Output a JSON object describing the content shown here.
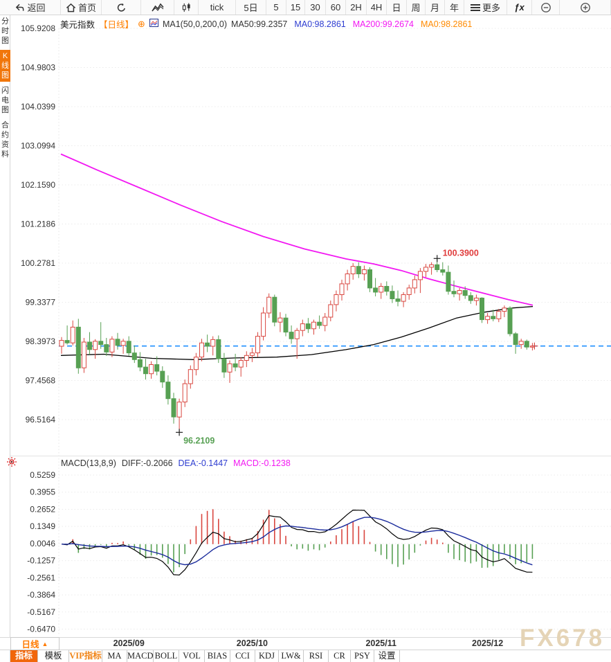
{
  "toolbar": {
    "items": [
      {
        "name": "back-button",
        "icon": "back-arrow",
        "label": "返回"
      },
      {
        "name": "home-button",
        "icon": "home",
        "label": "首页"
      },
      {
        "name": "refresh-button",
        "icon": "refresh",
        "label": ""
      },
      {
        "name": "line-chart-button",
        "icon": "line-chart",
        "label": ""
      },
      {
        "name": "candlestick-button",
        "icon": "candlestick",
        "label": ""
      },
      {
        "name": "tick-button",
        "icon": "",
        "label": "tick"
      },
      {
        "name": "5d-button",
        "icon": "",
        "label": "5日"
      },
      {
        "name": "5m-button",
        "icon": "",
        "label": "5"
      },
      {
        "name": "15m-button",
        "icon": "",
        "label": "15"
      },
      {
        "name": "30m-button",
        "icon": "",
        "label": "30"
      },
      {
        "name": "60m-button",
        "icon": "",
        "label": "60"
      },
      {
        "name": "2h-button",
        "icon": "",
        "label": "2H"
      },
      {
        "name": "4h-button",
        "icon": "",
        "label": "4H"
      },
      {
        "name": "day-button",
        "icon": "",
        "label": "日"
      },
      {
        "name": "week-button",
        "icon": "",
        "label": "周"
      },
      {
        "name": "month-button",
        "icon": "",
        "label": "月"
      },
      {
        "name": "year-button",
        "icon": "",
        "label": "年"
      },
      {
        "name": "more-button",
        "icon": "menu",
        "label": "更多"
      },
      {
        "name": "fx-button",
        "icon": "fx",
        "label": ""
      },
      {
        "name": "zoom-out-button",
        "icon": "zoom-out",
        "label": ""
      },
      {
        "name": "zoom-in-button",
        "icon": "zoom-in",
        "label": ""
      }
    ]
  },
  "sidebar": {
    "tabs": [
      {
        "name": "sidebar-tab-time-share",
        "label": "分时图",
        "active": false
      },
      {
        "name": "sidebar-tab-kline",
        "label": "K线图",
        "active": true
      },
      {
        "name": "sidebar-tab-lightning",
        "label": "闪电图",
        "active": false
      },
      {
        "name": "sidebar-tab-contract-info",
        "label": "合约资料",
        "active": false
      }
    ]
  },
  "chart_header": {
    "symbol": "美元指数",
    "period": "【日线】",
    "ma_config": "MA1(50,0,200,0)",
    "ma_values": [
      {
        "text": "MA50:99.2357",
        "color": "#333333"
      },
      {
        "text": "MA0:98.2861",
        "color": "#2d3cd0"
      },
      {
        "text": "MA200:99.2674",
        "color": "#f218f2"
      },
      {
        "text": "MA0:98.2861",
        "color": "#ff8a00"
      }
    ]
  },
  "macd_header": {
    "values": [
      {
        "text": "MACD(13,8,9)",
        "color": "#333333"
      },
      {
        "text": "DIFF:-0.2066",
        "color": "#333333"
      },
      {
        "text": "DEA:-0.1447",
        "color": "#2d3cd0"
      },
      {
        "text": "MACD:-0.1238",
        "color": "#f218f2"
      }
    ]
  },
  "chart_data": {
    "type": "candlestick",
    "title": "美元指数 日线 (US Dollar Index, daily)",
    "price_axis": [
      105.9208,
      104.9803,
      104.0399,
      103.0994,
      102.159,
      101.2186,
      100.2781,
      99.3377,
      98.3973,
      97.4568,
      96.5164
    ],
    "macd_axis": [
      0.5259,
      0.3955,
      0.2652,
      0.1349,
      0.0046,
      -0.1257,
      -0.2561,
      -0.3864,
      -0.5167,
      -0.647
    ],
    "months": [
      {
        "label": "2025/09",
        "index": 12
      },
      {
        "label": "2025/10",
        "index": 34
      },
      {
        "label": "2025/11",
        "index": 57
      },
      {
        "label": "2025/12",
        "index": 76
      }
    ],
    "last_price": 98.2861,
    "high_label": "100.3900",
    "low_label": "96.2109",
    "colors": {
      "up": "#d9463f",
      "down": "#57a053",
      "ma50": "#000000",
      "ma200": "#f218f2",
      "diff": "#000000",
      "dea": "#1a2b9c",
      "last_price_line": "#1e8fff",
      "grid": "#ebebeb",
      "high_label": "#e03c3c",
      "low_label": "#57a053"
    },
    "candles": [
      [
        98.28,
        98.5,
        98.1,
        98.42
      ],
      [
        98.42,
        98.78,
        98.32,
        98.36
      ],
      [
        98.36,
        98.9,
        98.3,
        98.74
      ],
      [
        98.74,
        98.94,
        97.62,
        97.76
      ],
      [
        97.76,
        98.48,
        97.64,
        98.38
      ],
      [
        98.38,
        98.62,
        98.08,
        98.2
      ],
      [
        98.2,
        98.45,
        97.98,
        98.4
      ],
      [
        98.4,
        98.86,
        98.22,
        98.32
      ],
      [
        98.32,
        98.48,
        98.05,
        98.14
      ],
      [
        98.14,
        98.52,
        98.02,
        98.45
      ],
      [
        98.45,
        98.6,
        98.2,
        98.3
      ],
      [
        98.3,
        98.46,
        98.1,
        98.4
      ],
      [
        98.4,
        98.52,
        98.05,
        98.12
      ],
      [
        98.12,
        98.3,
        97.88,
        97.96
      ],
      [
        97.96,
        98.14,
        97.68,
        97.78
      ],
      [
        97.78,
        97.98,
        97.48,
        97.62
      ],
      [
        97.62,
        97.92,
        97.5,
        97.84
      ],
      [
        97.84,
        98.04,
        97.58,
        97.68
      ],
      [
        97.68,
        97.8,
        97.28,
        97.42
      ],
      [
        97.42,
        97.58,
        96.88,
        97.02
      ],
      [
        97.02,
        97.16,
        96.42,
        96.58
      ],
      [
        96.58,
        97.02,
        96.2109,
        96.94
      ],
      [
        96.94,
        97.48,
        96.82,
        97.38
      ],
      [
        97.38,
        97.82,
        97.26,
        97.72
      ],
      [
        97.72,
        98.12,
        97.58,
        98.02
      ],
      [
        98.02,
        98.46,
        97.92,
        98.36
      ],
      [
        98.36,
        98.56,
        98.14,
        98.28
      ],
      [
        98.28,
        98.52,
        98.06,
        98.44
      ],
      [
        98.44,
        98.54,
        97.88,
        97.98
      ],
      [
        97.98,
        98.12,
        97.52,
        97.66
      ],
      [
        97.66,
        97.94,
        97.4,
        97.86
      ],
      [
        97.86,
        98.1,
        97.68,
        97.78
      ],
      [
        97.78,
        98.02,
        97.55,
        97.94
      ],
      [
        97.94,
        98.16,
        97.78,
        98.06
      ],
      [
        98.06,
        98.24,
        97.9,
        98.12
      ],
      [
        98.12,
        98.62,
        98.02,
        98.52
      ],
      [
        98.52,
        99.22,
        98.42,
        99.08
      ],
      [
        99.08,
        99.55,
        98.96,
        99.46
      ],
      [
        99.46,
        99.52,
        98.76,
        98.86
      ],
      [
        98.86,
        99.1,
        98.62,
        98.96
      ],
      [
        98.96,
        99.06,
        98.52,
        98.62
      ],
      [
        98.62,
        98.78,
        98.34,
        98.46
      ],
      [
        98.46,
        98.72,
        97.98,
        98.66
      ],
      [
        98.66,
        98.92,
        98.52,
        98.82
      ],
      [
        98.82,
        98.96,
        98.6,
        98.7
      ],
      [
        98.7,
        98.92,
        98.56,
        98.86
      ],
      [
        98.86,
        99.02,
        98.7,
        98.78
      ],
      [
        98.78,
        99.08,
        98.64,
        98.98
      ],
      [
        98.98,
        99.38,
        98.88,
        99.28
      ],
      [
        99.28,
        99.62,
        99.12,
        99.52
      ],
      [
        99.52,
        99.88,
        99.38,
        99.78
      ],
      [
        99.78,
        100.12,
        99.62,
        100.02
      ],
      [
        100.02,
        100.28,
        99.88,
        100.2
      ],
      [
        100.2,
        100.3,
        99.92,
        100.02
      ],
      [
        100.02,
        100.22,
        99.86,
        100.12
      ],
      [
        100.12,
        100.18,
        99.58,
        99.68
      ],
      [
        99.68,
        99.92,
        99.48,
        99.58
      ],
      [
        99.58,
        99.8,
        99.42,
        99.72
      ],
      [
        99.72,
        99.84,
        99.5,
        99.6
      ],
      [
        99.6,
        99.74,
        99.32,
        99.42
      ],
      [
        99.42,
        99.62,
        99.24,
        99.36
      ],
      [
        99.36,
        99.58,
        99.22,
        99.52
      ],
      [
        99.52,
        99.76,
        99.4,
        99.68
      ],
      [
        99.68,
        99.98,
        99.55,
        99.88
      ],
      [
        99.88,
        100.16,
        99.56,
        100.08
      ],
      [
        100.08,
        100.26,
        99.94,
        100.18
      ],
      [
        100.18,
        100.3,
        100.0,
        100.24
      ],
      [
        100.24,
        100.39,
        100.06,
        100.12
      ],
      [
        100.12,
        100.3,
        99.98,
        100.06
      ],
      [
        100.06,
        100.22,
        99.52,
        99.6
      ],
      [
        99.6,
        99.86,
        99.46,
        99.54
      ],
      [
        99.54,
        99.68,
        99.38,
        99.62
      ],
      [
        99.62,
        99.72,
        99.42,
        99.5
      ],
      [
        99.5,
        99.58,
        99.3,
        99.38
      ],
      [
        99.38,
        99.52,
        99.26,
        99.44
      ],
      [
        99.44,
        99.46,
        98.84,
        98.92
      ],
      [
        98.92,
        99.08,
        98.82,
        99.0
      ],
      [
        99.0,
        99.16,
        98.88,
        98.94
      ],
      [
        98.94,
        99.18,
        98.86,
        99.12
      ],
      [
        99.12,
        99.26,
        98.98,
        99.2
      ],
      [
        99.2,
        99.24,
        98.52,
        98.58
      ],
      [
        98.58,
        98.62,
        98.1,
        98.32
      ],
      [
        98.32,
        98.46,
        98.22,
        98.4
      ],
      [
        98.4,
        98.44,
        98.2,
        98.26
      ],
      [
        98.26,
        98.36,
        98.18,
        98.2861
      ]
    ],
    "ma200_points": [
      [
        88,
        102.9
      ],
      [
        140,
        102.52
      ],
      [
        200,
        102.1
      ],
      [
        260,
        101.68
      ],
      [
        320,
        101.28
      ],
      [
        380,
        100.92
      ],
      [
        440,
        100.62
      ],
      [
        500,
        100.38
      ],
      [
        540,
        100.26
      ],
      [
        580,
        100.1
      ],
      [
        620,
        99.9
      ],
      [
        660,
        99.72
      ],
      [
        700,
        99.55
      ],
      [
        735,
        99.4
      ],
      [
        770,
        99.2674
      ]
    ],
    "ma50_points": [
      [
        88,
        98.06
      ],
      [
        150,
        98.09
      ],
      [
        220,
        97.99
      ],
      [
        280,
        97.96
      ],
      [
        340,
        98.0
      ],
      [
        400,
        98.02
      ],
      [
        450,
        98.08
      ],
      [
        500,
        98.2
      ],
      [
        540,
        98.32
      ],
      [
        580,
        98.5
      ],
      [
        620,
        98.72
      ],
      [
        660,
        98.96
      ],
      [
        700,
        99.1
      ],
      [
        740,
        99.2
      ],
      [
        770,
        99.2357
      ]
    ]
  },
  "bottom": {
    "period_selector": "日线",
    "tabs": [
      {
        "name": "tab-indicator",
        "label": "指标",
        "style": "active"
      },
      {
        "name": "tab-template",
        "label": "模板",
        "style": ""
      },
      {
        "name": "tab-vip-indicator",
        "label": "VIP指标",
        "style": "vip"
      },
      {
        "name": "tab-ma",
        "label": "MA",
        "style": ""
      },
      {
        "name": "tab-macd",
        "label": "MACD",
        "style": ""
      },
      {
        "name": "tab-boll",
        "label": "BOLL",
        "style": ""
      },
      {
        "name": "tab-vol",
        "label": "VOL",
        "style": ""
      },
      {
        "name": "tab-bias",
        "label": "BIAS",
        "style": ""
      },
      {
        "name": "tab-cci",
        "label": "CCI",
        "style": ""
      },
      {
        "name": "tab-kdj",
        "label": "KDJ",
        "style": ""
      },
      {
        "name": "tab-lw",
        "label": "LW&",
        "style": ""
      },
      {
        "name": "tab-rsi",
        "label": "RSI",
        "style": ""
      },
      {
        "name": "tab-cr",
        "label": "CR",
        "style": ""
      },
      {
        "name": "tab-psy",
        "label": "PSY",
        "style": ""
      },
      {
        "name": "tab-settings",
        "label": "设置",
        "style": ""
      }
    ]
  },
  "watermark": "FX678"
}
